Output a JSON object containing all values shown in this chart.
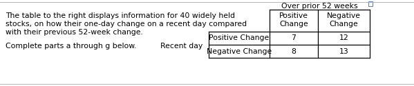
{
  "bg_color": "#ffffff",
  "left_text_lines": [
    "The table to the right displays information for 40 widely held",
    "stocks, on how their one-day change on a recent day compared",
    "with their previous 52-week change."
  ],
  "bottom_left_label": "Complete parts a through g below.",
  "recent_day_label": "Recent day",
  "over_prior_label": "Over prior 52 weeks",
  "col_headers": [
    "Positive\nChange",
    "Negative\nChange"
  ],
  "row_headers": [
    "Positive Change",
    "Negative Change"
  ],
  "cell_values": [
    [
      7,
      12
    ],
    [
      8,
      13
    ]
  ],
  "font_size": 7.8,
  "line_color": "#000000",
  "icon_color": "#5588cc",
  "top_border_color": "#aaaaaa",
  "bottom_border_color": "#aaaaaa"
}
